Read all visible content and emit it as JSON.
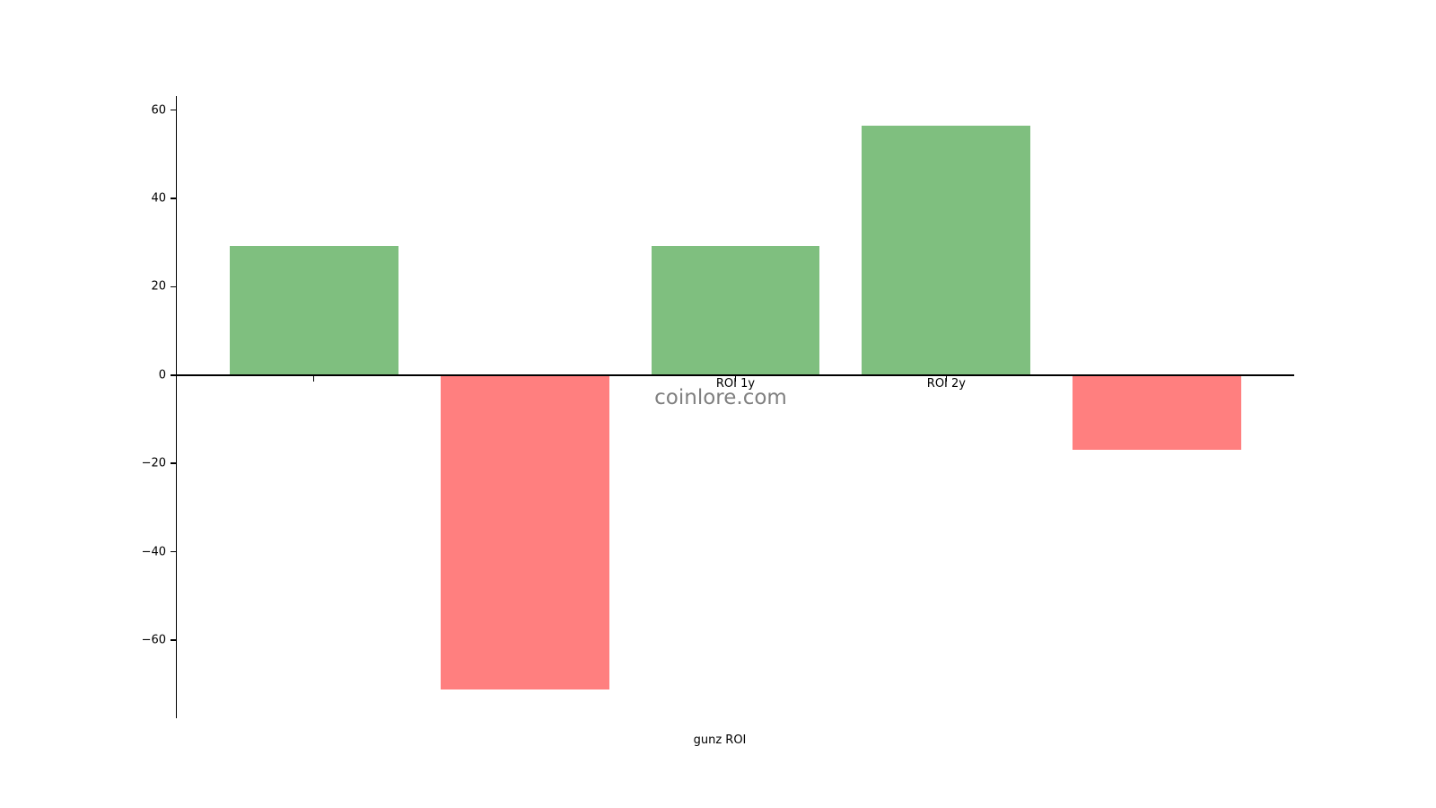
{
  "chart_data": {
    "type": "bar",
    "title": "gunz ROI",
    "watermark": "coinlore.com",
    "categories": [
      "",
      "",
      "ROI 1y",
      "ROI 2y",
      ""
    ],
    "values": [
      29.2,
      -71.1,
      29.2,
      56.4,
      -17.0
    ],
    "series": [
      {
        "name": "gunz ROI",
        "values": [
          29.2,
          -71.1,
          29.2,
          56.4,
          -17.0
        ]
      }
    ],
    "positive_color": "#7FBF7F",
    "negative_color": "#FF7F7F",
    "axis_color": "#000000",
    "watermark_color": "#808080",
    "ylim": [
      -77.7,
      63.2
    ],
    "yticks": [
      60,
      40,
      20,
      0,
      -20,
      -40,
      -60
    ],
    "ytick_labels": [
      "60",
      "40",
      "20",
      "0",
      "−20",
      "−40",
      "−60"
    ],
    "xticks": [
      {
        "index": 0,
        "label": ""
      },
      {
        "index": 2,
        "label": "ROI 1y"
      },
      {
        "index": 3,
        "label": "ROI 2y"
      }
    ],
    "xlabel": "gunz ROI",
    "ylabel": "",
    "grid": false,
    "legend": null,
    "bar_width_fraction": 0.8
  }
}
